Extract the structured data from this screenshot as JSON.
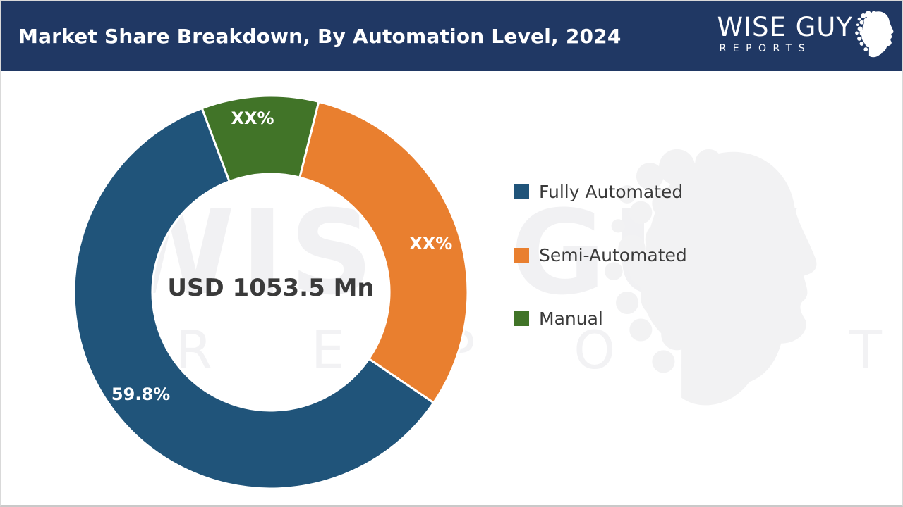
{
  "header": {
    "title": "Market Share Breakdown, By Automation Level, 2024",
    "bg_color": "#203864",
    "logo": {
      "line1": "WISE GUY",
      "line2": "REPORTS",
      "head_icon": "dotted-face-profile"
    }
  },
  "watermark": {
    "line1": "WISE GUY",
    "line2": "R E P O R T S",
    "head_icon": "dotted-face-profile",
    "color": "#f1f1f3"
  },
  "chart_data": {
    "type": "pie",
    "subtype": "donut",
    "title": "Market Share Breakdown, By Automation Level, 2024",
    "center_label": "USD 1053.5 Mn",
    "units": "percent market share",
    "start_angle_deg": 110.5,
    "direction": "counterclockwise",
    "legend_position": "right",
    "grid": false,
    "note": "XX% labels are masked in the source image; value_pct for masked segments is estimated from arc angles",
    "segments": [
      {
        "name": "Fully Automated",
        "label": "59.8%",
        "value_pct": 59.8,
        "masked": false,
        "color": "#20547A",
        "label_r": 0.84,
        "label_angle_deg": 218.1
      },
      {
        "name": "Semi-Automated",
        "label": "XX%",
        "value_pct": 30.6,
        "masked": true,
        "color": "#E97F2F",
        "label_r": 0.85,
        "label_angle_deg": 17
      },
      {
        "name": "Manual",
        "label": "XX%",
        "value_pct": 9.6,
        "masked": true,
        "color": "#417428",
        "label_r": 0.89,
        "label_angle_deg": 96
      }
    ]
  }
}
